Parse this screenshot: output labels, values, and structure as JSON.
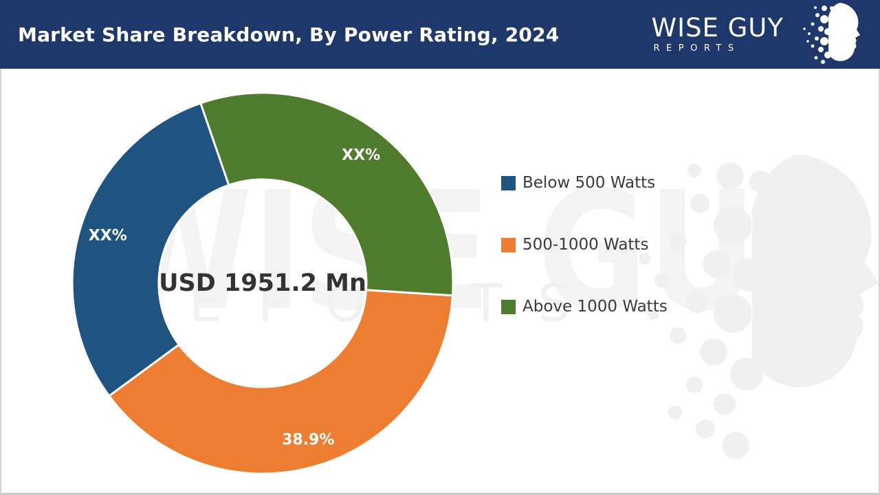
{
  "header": {
    "title": "Market Share Breakdown, By Power Rating, 2024",
    "logo": {
      "line1": "WISE GUY",
      "line2": "REPORTS"
    }
  },
  "watermark": {
    "line1": "WISE GUY",
    "line2": "REPORTS"
  },
  "chart_data": {
    "type": "donut",
    "title": "Market Share Breakdown, By Power Rating, 2024",
    "center_label": "USD 1951.2 Mn",
    "start_angle_deg_from_top": -19,
    "sweep": "counterclockwise",
    "inner_radius_ratio": 0.545,
    "legend_position": "right",
    "segments": [
      {
        "label": "Below 500 Watts",
        "display_label": "XX%",
        "value_pct": 29.8,
        "color": "#1f5480"
      },
      {
        "label": "500-1000 Watts",
        "display_label": "38.9%",
        "value_pct": 38.9,
        "color": "#ed7d31"
      },
      {
        "label": "Above 1000 Watts",
        "display_label": "XX%",
        "value_pct": 31.3,
        "color": "#4e7b2c"
      }
    ]
  },
  "colors": {
    "header_bg": "#1e386b",
    "legend_text": "#3a3a3a",
    "center_text": "#333333",
    "border": "#c8c8c8"
  }
}
